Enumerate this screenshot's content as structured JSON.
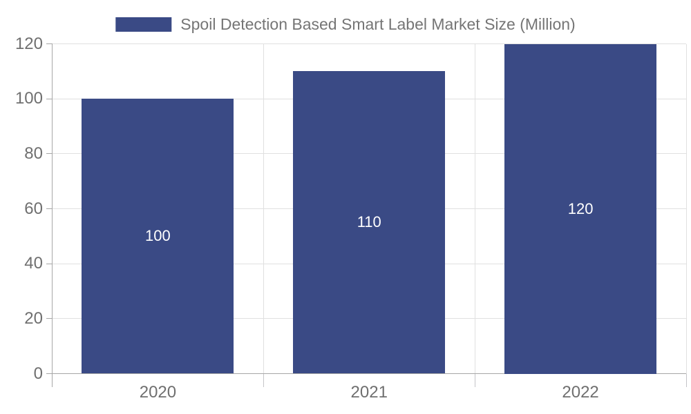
{
  "chart_data": {
    "type": "bar",
    "title": "Spoil Detection Based Smart Label Market Size (Million)",
    "categories": [
      "2020",
      "2021",
      "2022"
    ],
    "values": [
      100,
      110,
      120
    ],
    "series": [
      {
        "name": "Spoil Detection Based Smart Label Market Size (Million)",
        "values": [
          100,
          110,
          120
        ]
      }
    ],
    "xlabel": "",
    "ylabel": "",
    "ylim": [
      0,
      120
    ],
    "yticks": [
      0,
      20,
      40,
      60,
      80,
      100,
      120
    ],
    "grid": "on",
    "legend_position": "top-center",
    "bar_value_labels": [
      "100",
      "110",
      "120"
    ],
    "colors": {
      "bar": "#3a4a85",
      "bar_label_text": "#ffffff",
      "axis_line": "#a6a6a6",
      "x_tick_line": "#c4c4c8",
      "y_tick_line": "#a6a6a6",
      "grid_line": "#e0e0e0",
      "tick_label_text": "#6f6f6f",
      "legend_text": "#757575",
      "background": "#ffffff"
    }
  }
}
